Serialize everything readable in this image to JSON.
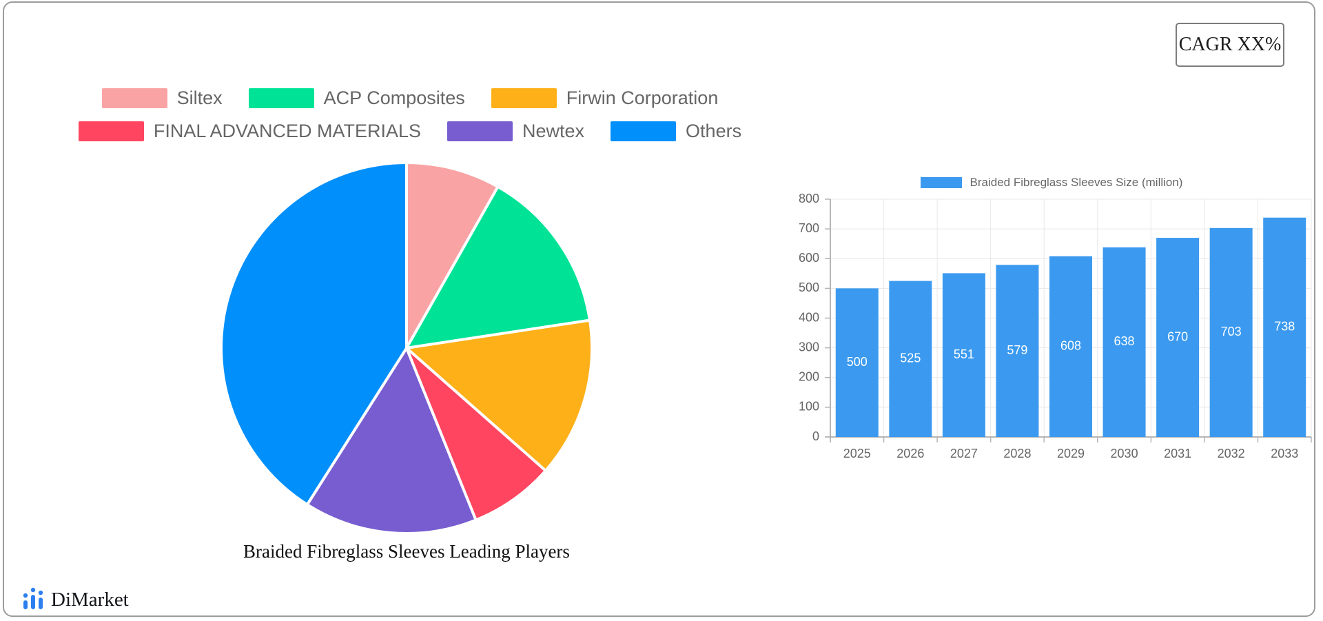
{
  "header": {
    "cagr_label": "CAGR XX%"
  },
  "footer": {
    "brand": "DiMarket",
    "brand_icon": "bar-chart-icon",
    "brand_color": "#2d7ff0"
  },
  "chart_data": [
    {
      "type": "pie",
      "title": "Braided Fibreglass Sleeves Leading Players",
      "legend_position": "top",
      "legend_rows": [
        [
          0,
          1,
          2
        ],
        [
          3,
          4,
          5
        ]
      ],
      "slices": [
        {
          "label": "Siltex",
          "value": 8.2,
          "color": "#F9A3A4"
        },
        {
          "label": "ACP Composites",
          "value": 14.4,
          "color": "#00E396"
        },
        {
          "label": "Firwin Corporation",
          "value": 13.9,
          "color": "#FEB019"
        },
        {
          "label": "FINAL ADVANCED MATERIALS",
          "value": 7.4,
          "color": "#FF4560"
        },
        {
          "label": "Newtex",
          "value": 15.1,
          "color": "#775DD0"
        },
        {
          "label": "Others",
          "value": 41.0,
          "color": "#008FFB"
        }
      ]
    },
    {
      "type": "bar",
      "categories": [
        "2025",
        "2026",
        "2027",
        "2028",
        "2029",
        "2030",
        "2031",
        "2032",
        "2033"
      ],
      "series": [
        {
          "name": "Braided Fibreglass Sleeves Size (million)",
          "values": [
            500,
            525,
            551,
            579,
            608,
            638,
            670,
            703,
            738
          ]
        }
      ],
      "bar_color": "#3B9AEF",
      "ylim": [
        0,
        800
      ],
      "yticks": [
        0,
        100,
        200,
        300,
        400,
        500,
        600,
        700,
        800
      ],
      "grid": true,
      "legend_position": "top",
      "value_label_color": "#ffffff"
    }
  ]
}
